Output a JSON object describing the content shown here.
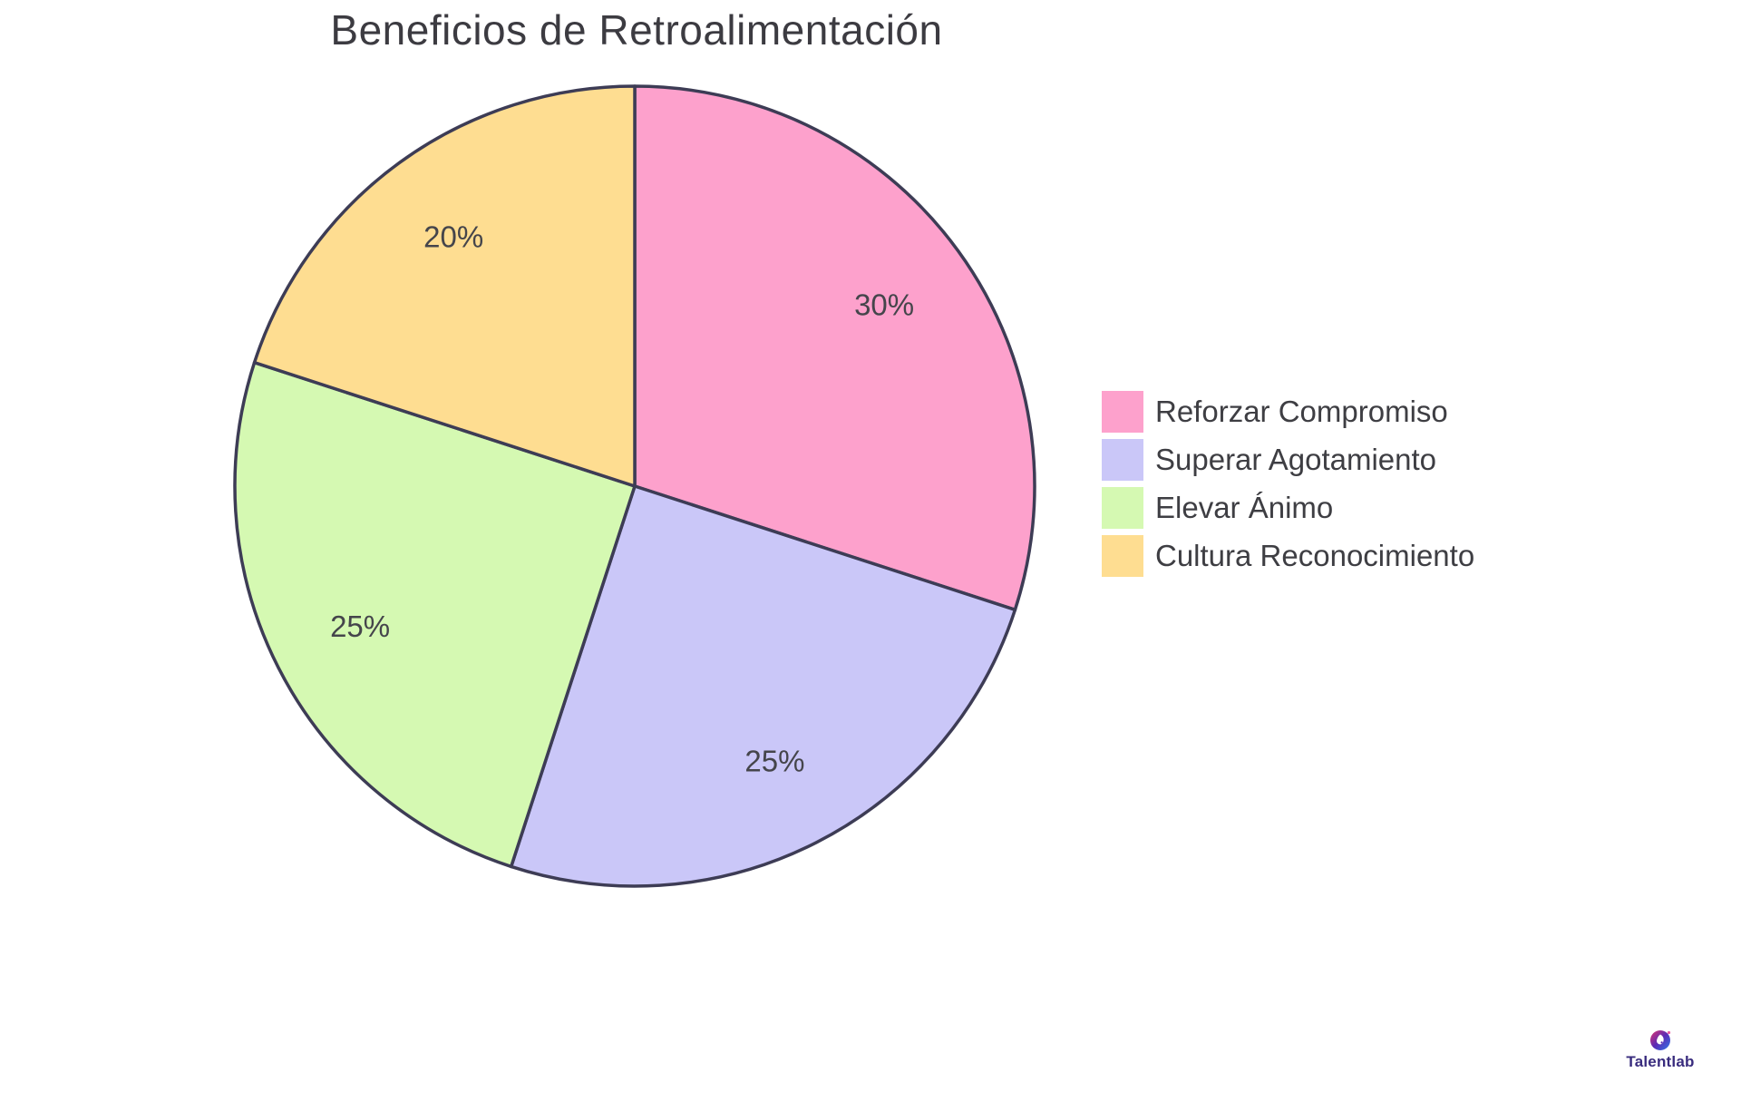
{
  "page": {
    "background_color": "#ffffff"
  },
  "chart_data": {
    "type": "pie",
    "title": "Beneficios de Retroalimentación",
    "labels": [
      "Reforzar Compromiso",
      "Superar Agotamiento",
      "Elevar Ánimo",
      "Cultura Reconocimiento"
    ],
    "values": [
      30,
      25,
      25,
      20
    ],
    "percent_labels": [
      "30%",
      "25%",
      "25%",
      "20%"
    ],
    "colors": [
      "#FDA1CC",
      "#CAC7F8",
      "#D5F9B2",
      "#FEDD91"
    ],
    "slice_border_color": "#3d3c55",
    "percent_label_color": "#45454b",
    "start_angle_deg": 0,
    "direction": "clockwise",
    "legend_position": "right"
  },
  "branding": {
    "logo_text": "Talentlab",
    "logo_text_color": "#392c7e",
    "logo_gradient": [
      "#e0336e",
      "#5b2ab5",
      "#2f7bea"
    ]
  }
}
